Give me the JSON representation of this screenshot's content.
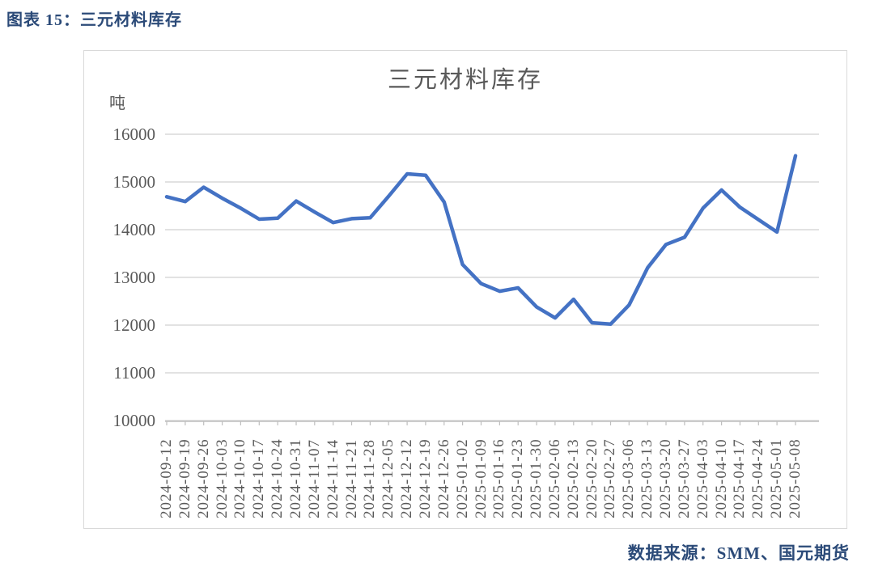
{
  "page": {
    "title": "图表 15：三元材料库存",
    "source_note": "数据来源：SMM、国元期货"
  },
  "colors": {
    "accent_line": "#4472c4",
    "navy_text": "#2b4a78",
    "gray_text": "#595959",
    "gridline": "#d9d9d9",
    "axis_line": "#bfbfbf",
    "chart_border": "#d9d9d9"
  },
  "chart_data": {
    "type": "line",
    "title": "三元材料库存",
    "unit_label": "吨",
    "xlabel": "",
    "ylabel": "",
    "ylim": [
      10000,
      16000
    ],
    "yticks": [
      16000,
      15000,
      14000,
      13000,
      12000,
      11000,
      10000
    ],
    "grid": "horizontal",
    "legend": "none",
    "x_tick_rotation": -90,
    "categories": [
      "2024-09-12",
      "2024-09-19",
      "2024-09-26",
      "2024-10-03",
      "2024-10-10",
      "2024-10-17",
      "2024-10-24",
      "2024-10-31",
      "2024-11-07",
      "2024-11-14",
      "2024-11-21",
      "2024-11-28",
      "2024-12-05",
      "2024-12-12",
      "2024-12-19",
      "2024-12-26",
      "2025-01-02",
      "2025-01-09",
      "2025-01-16",
      "2025-01-23",
      "2025-01-30",
      "2025-02-06",
      "2025-02-13",
      "2025-02-20",
      "2025-02-27",
      "2025-03-06",
      "2025-03-13",
      "2025-03-20",
      "2025-03-27",
      "2025-04-03",
      "2025-04-10",
      "2025-04-17",
      "2025-04-24",
      "2025-05-01",
      "2025-05-08"
    ],
    "series": [
      {
        "name": "三元材料库存",
        "values": [
          14690,
          14590,
          14890,
          14660,
          14450,
          14220,
          14240,
          14600,
          14370,
          14150,
          14230,
          14250,
          14700,
          15170,
          15140,
          14580,
          13270,
          12870,
          12710,
          12780,
          12380,
          12150,
          12540,
          12050,
          12020,
          12420,
          13200,
          13690,
          13840,
          14450,
          14830,
          14470,
          14210,
          13950,
          15550
        ]
      }
    ]
  }
}
